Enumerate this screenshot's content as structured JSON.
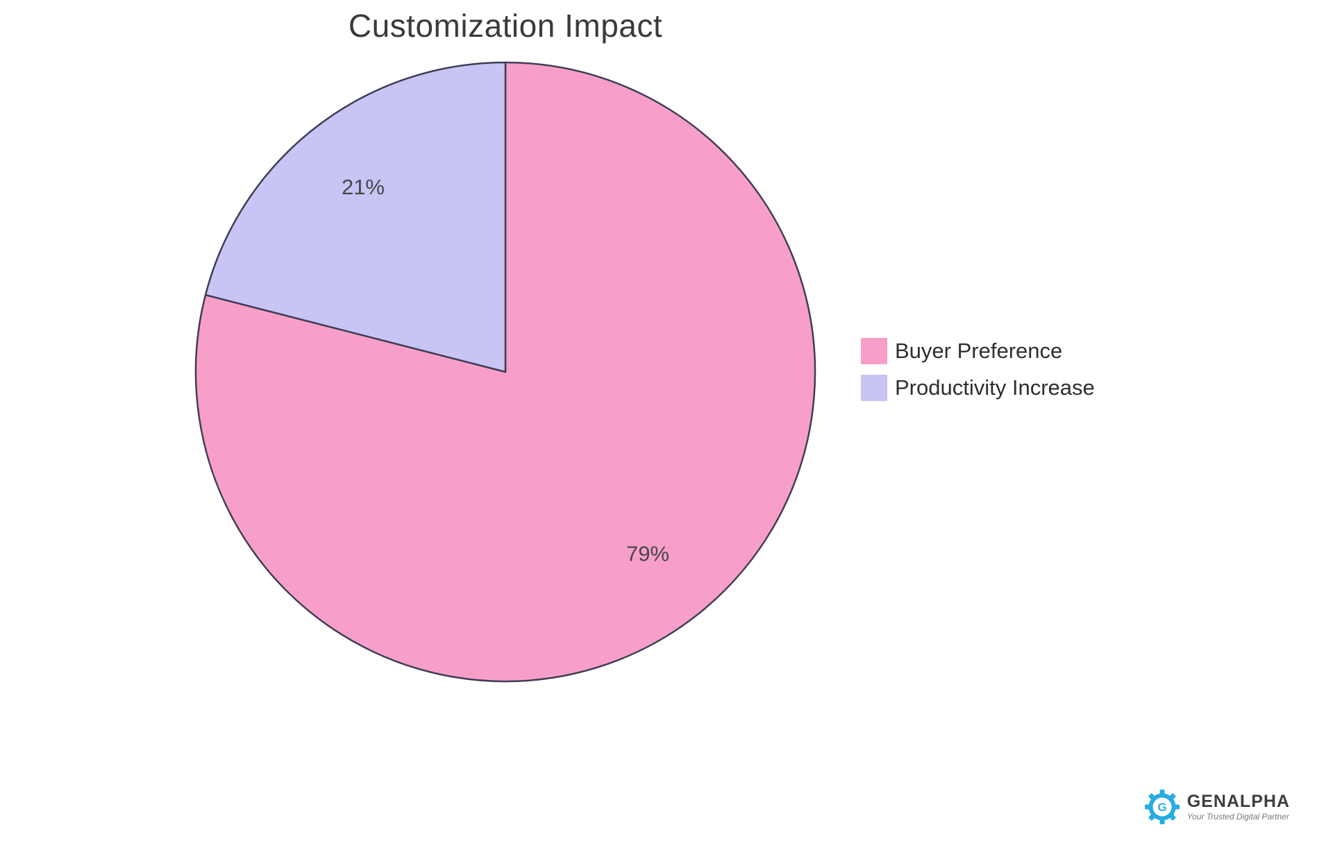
{
  "chart_data": {
    "type": "pie",
    "title": "Customization Impact",
    "labels": [
      "Buyer Preference",
      "Productivity Increase"
    ],
    "values": [
      79,
      21
    ],
    "unit": "%",
    "colors": [
      "#F89FC9",
      "#C8C4F4"
    ],
    "slice_border_color": "#3F3D56",
    "label_color": "#474747",
    "start_angle_deg": -90,
    "direction": "clockwise",
    "legend_position": "right",
    "data_labels": [
      "79%",
      "21%"
    ]
  },
  "logo": {
    "brand": "GENALPHA",
    "tagline": "Your Trusted Digital Partner",
    "accent_color": "#29ABE2"
  }
}
